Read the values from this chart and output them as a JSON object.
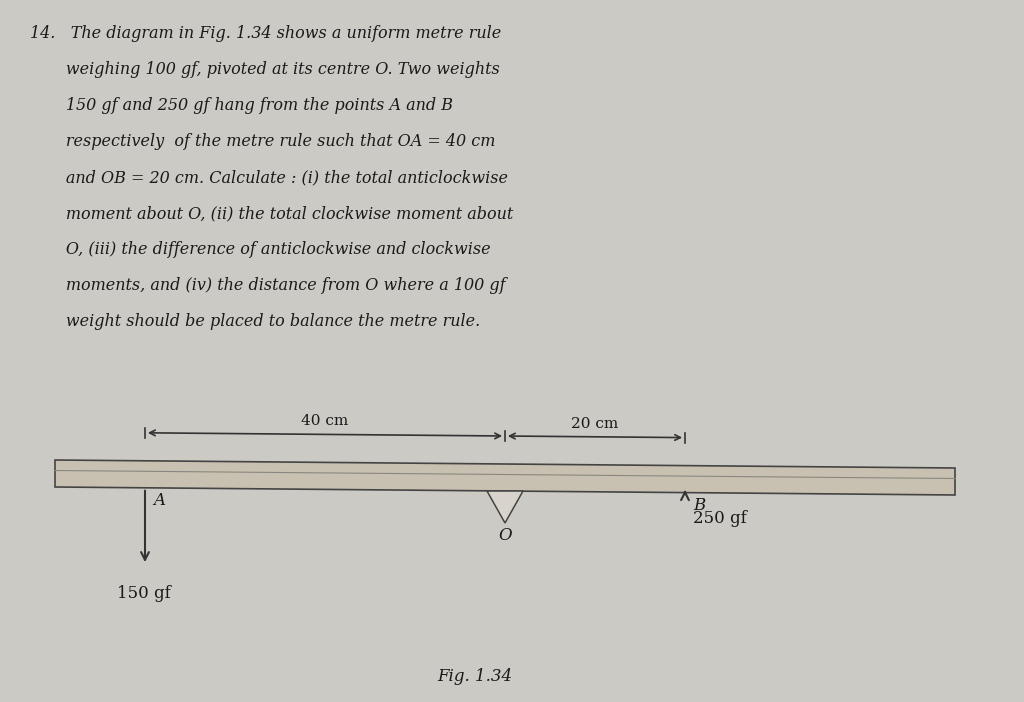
{
  "background_color": "#cccac4",
  "text_color": "#1a1a1a",
  "fig_width": 10.24,
  "fig_height": 7.02,
  "fig_caption": "Fig. 1.34",
  "ruler_color": "#c8c0b0",
  "ruler_border_color": "#444444",
  "pivot_color_fill": "#cccccc",
  "pivot_color_edge": "#444444",
  "arrow_color": "#333333",
  "dim_arrow_color": "#333333",
  "weight_A": "150 gf",
  "weight_B": "250 gf",
  "label_A": "A",
  "label_B": "B",
  "label_O": "O",
  "dim_40": "40 cm",
  "dim_20": "20 cm",
  "question_lines": [
    "14.   The diagram in Fig. 1.34 shows a uniform metre rule",
    "       weighing 100 gf, pivoted at its centre O. Two weights",
    "       150 gf and 250 gf hang from the points A and B",
    "       respectively  of the metre rule such that OA = 40 cm",
    "       and OB = 20 cm. Calculate : (i) the total anticlockwise",
    "       moment about O, (ii) the total clockwise moment about",
    "       O, (iii) the difference of anticlockwise and clockwise",
    "       moments, and (iv) the distance from O where a 100 gf",
    "       weight should be placed to balance the metre rule."
  ]
}
